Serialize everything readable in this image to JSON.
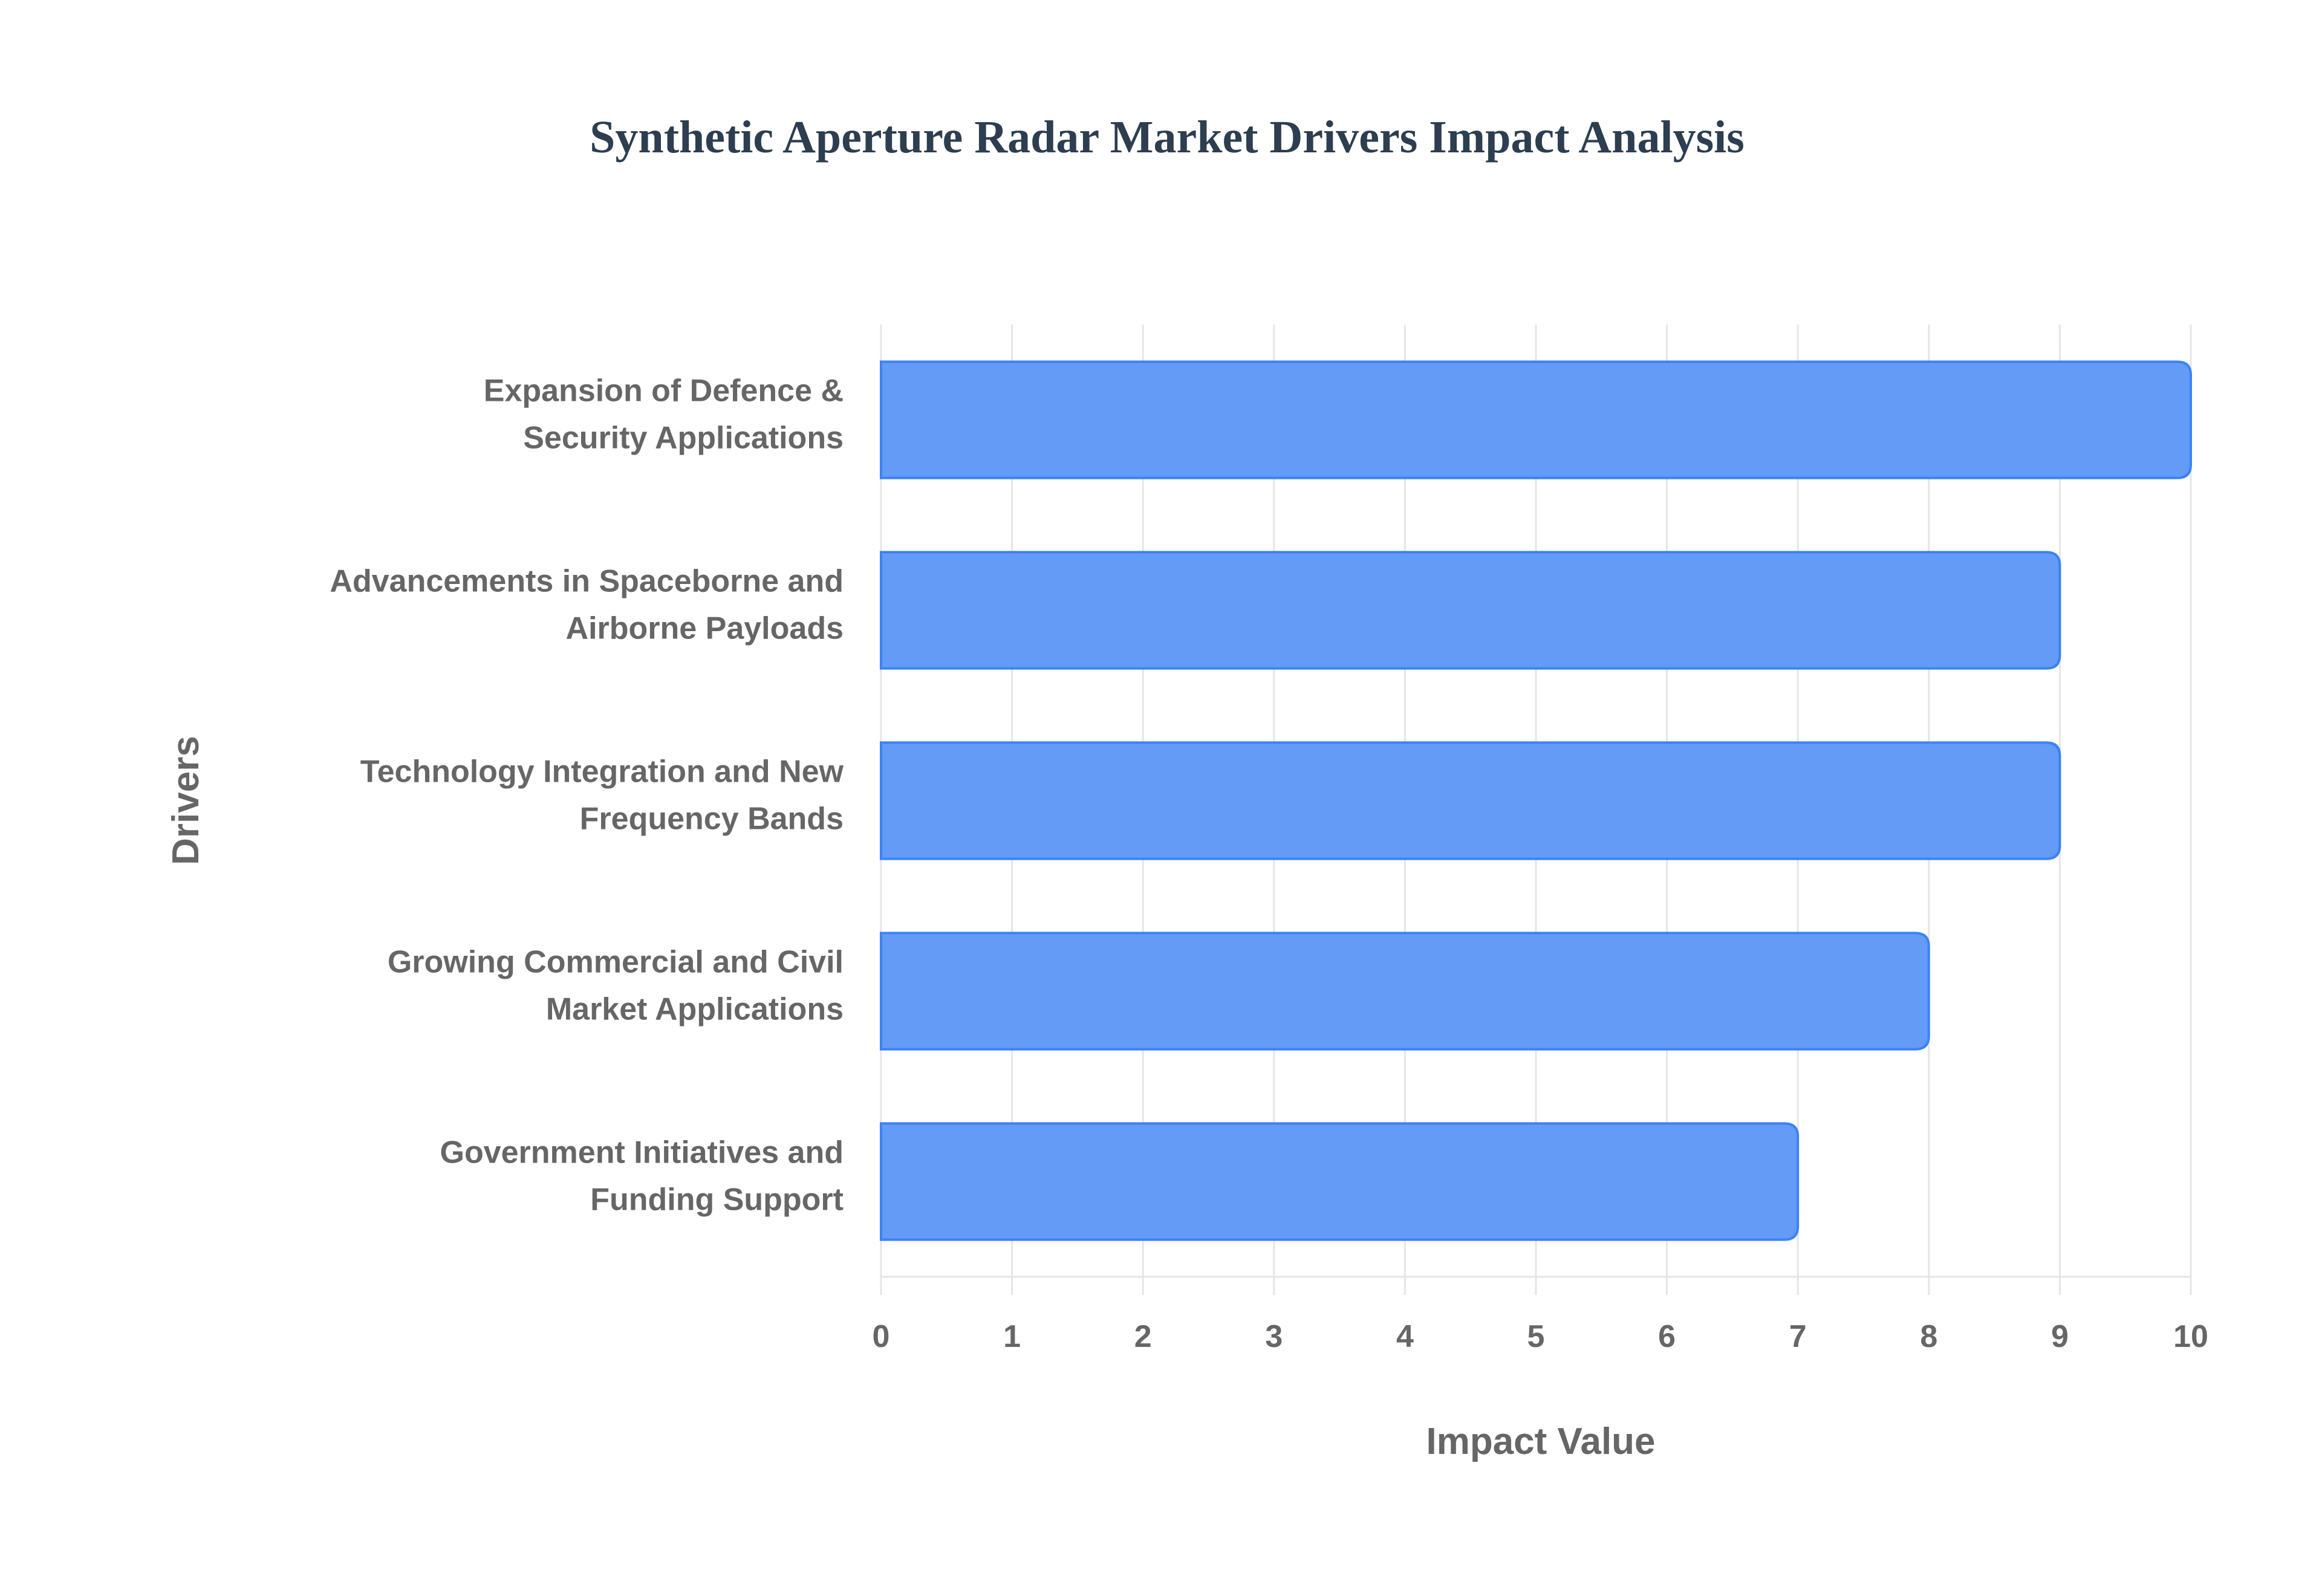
{
  "chart_data": {
    "type": "bar",
    "orientation": "horizontal",
    "title": "Synthetic Aperture Radar Market Drivers Impact Analysis",
    "xlabel": "Impact Value",
    "ylabel": "Drivers",
    "xlim": [
      0,
      10
    ],
    "xticks": [
      "0",
      "1",
      "2",
      "3",
      "4",
      "5",
      "6",
      "7",
      "8",
      "9",
      "10"
    ],
    "grid": true,
    "categories": [
      [
        "Expansion of Defence &",
        "Security Applications"
      ],
      [
        "Advancements in Spaceborne and",
        "Airborne Payloads"
      ],
      [
        "Technology Integration and New",
        "Frequency Bands"
      ],
      [
        "Growing Commercial and Civil",
        "Market Applications"
      ],
      [
        "Government Initiatives and",
        "Funding Support"
      ]
    ],
    "values": [
      10,
      9,
      9,
      8,
      7
    ],
    "colors": {
      "bar_fill": "#639bf6",
      "bar_border": "#3b82f6",
      "grid": "#e5e5e5",
      "title": "#2c3e50",
      "text": "#666666"
    }
  }
}
